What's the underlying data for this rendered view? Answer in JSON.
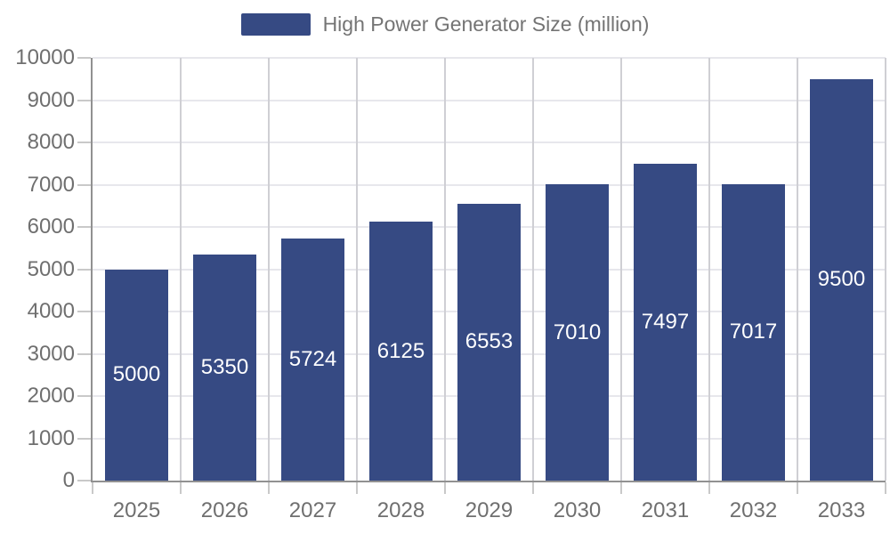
{
  "legend": {
    "label": "High Power Generator Size (million)"
  },
  "chart_data": {
    "type": "bar",
    "title": "High Power Generator Size (million)",
    "series_name": "High Power Generator Size (million)",
    "categories": [
      "2025",
      "2026",
      "2027",
      "2028",
      "2029",
      "2030",
      "2031",
      "2032",
      "2033"
    ],
    "values": [
      5000,
      5350,
      5724,
      6125,
      6553,
      7010,
      7497,
      7017,
      9500
    ],
    "yticks": [
      0,
      1000,
      2000,
      3000,
      4000,
      5000,
      6000,
      7000,
      8000,
      9000,
      10000
    ],
    "ylim": [
      0,
      10000
    ],
    "xlabel": "",
    "ylabel": "",
    "grid": true,
    "legend_position": "top",
    "bar_color": "#364a83",
    "bar_label_color": "#ffffff",
    "axis_text_color": "#6f6f6f",
    "legend_text_color": "#747474"
  }
}
